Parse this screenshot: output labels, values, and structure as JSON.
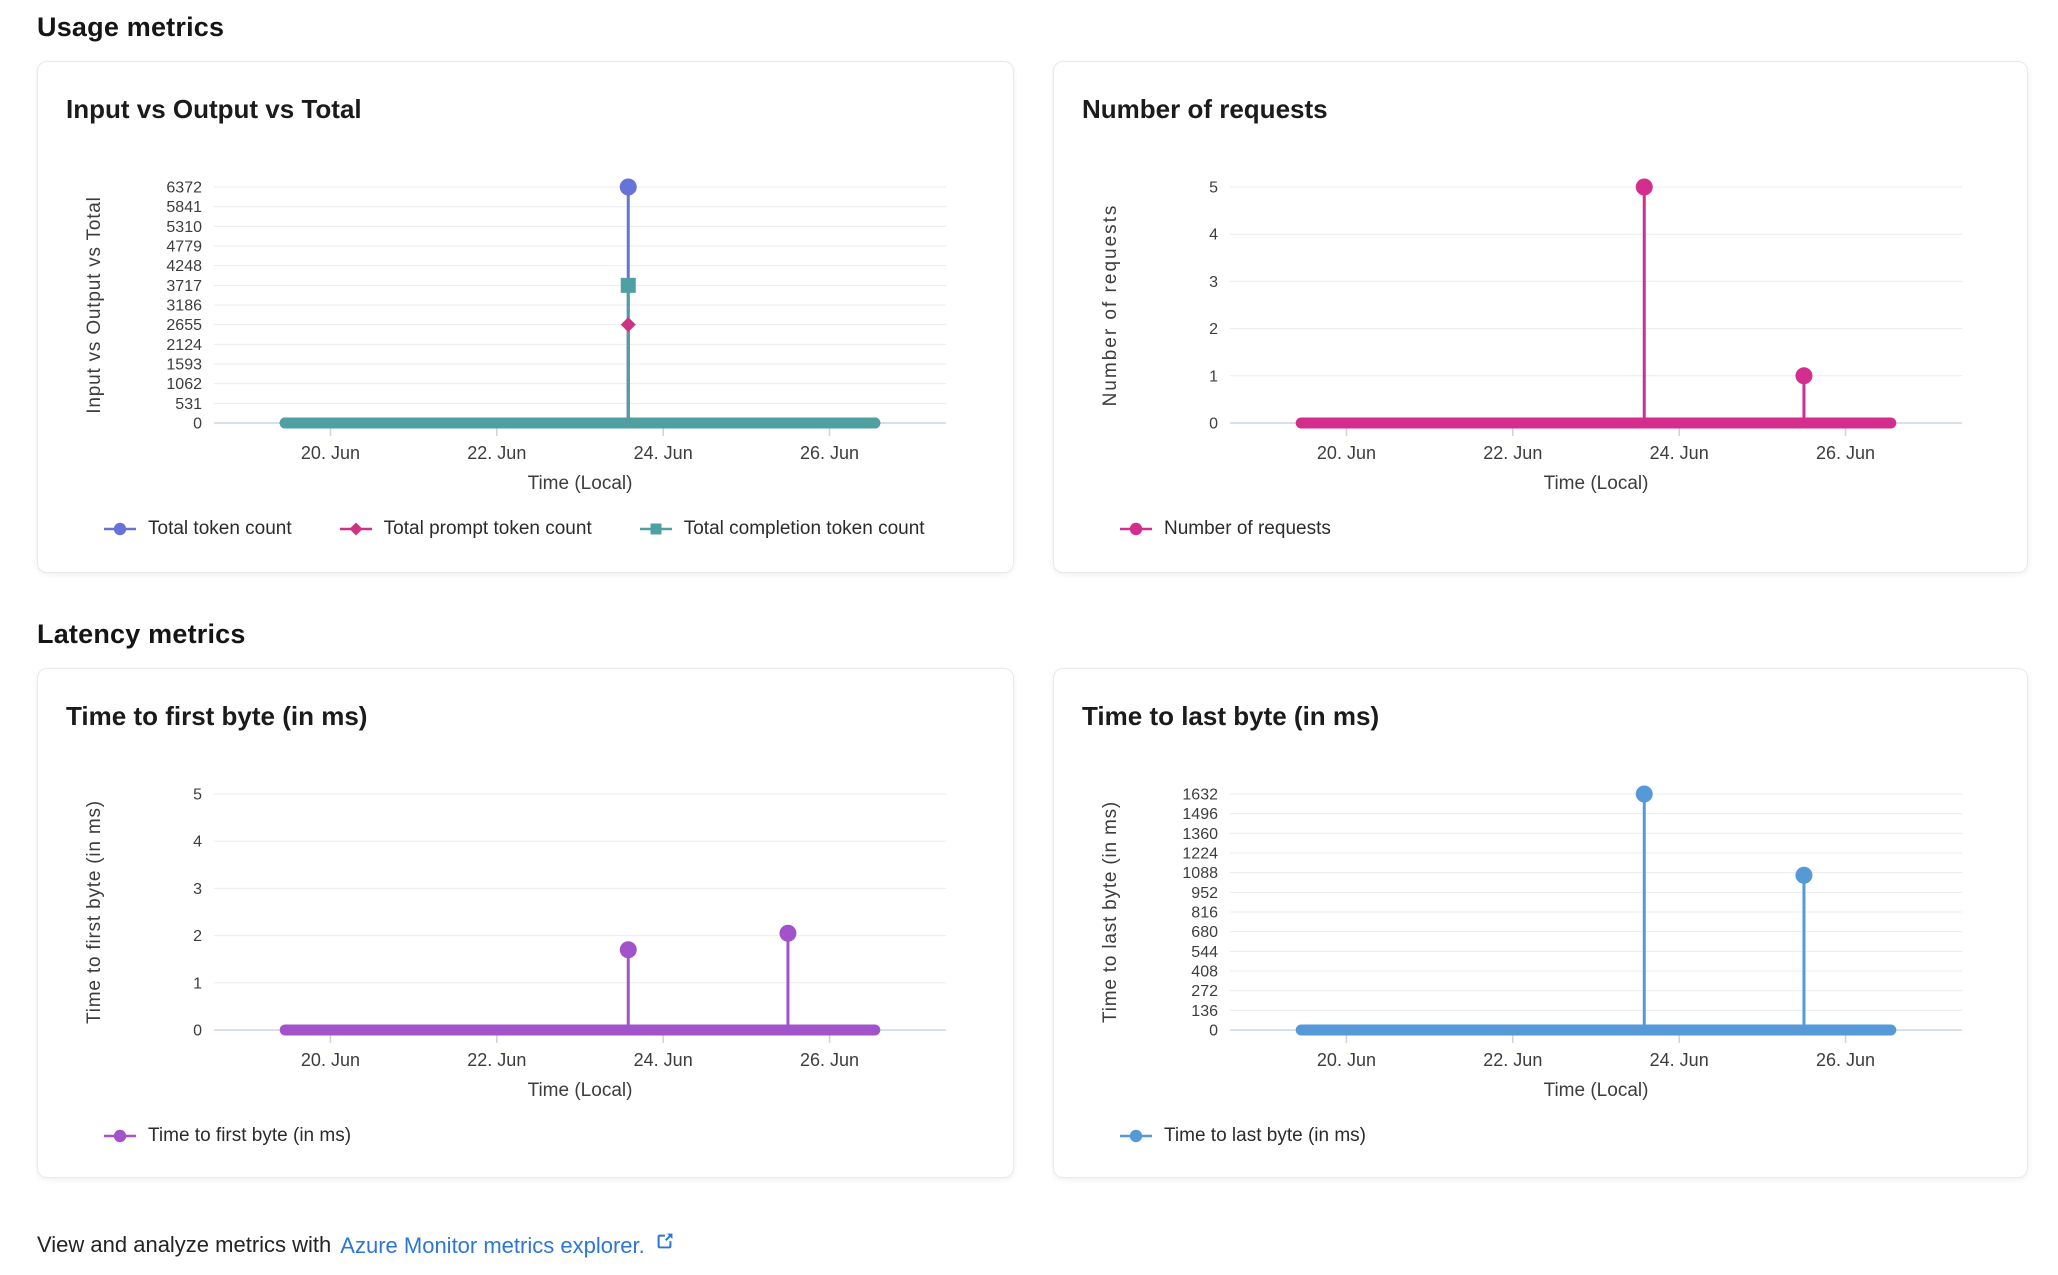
{
  "sections": {
    "usage": {
      "title": "Usage metrics"
    },
    "latency": {
      "title": "Latency metrics"
    }
  },
  "footer": {
    "text_before_link": "View and analyze metrics with ",
    "link_label": "Azure Monitor metrics explorer.",
    "link_color": "#2e76d5",
    "icon": "external-link-icon"
  },
  "chart_style": {
    "grid_color": "#ececec",
    "axis_line_color": "#ccd6e8",
    "tick_text_color": "#3d3d3d",
    "axis_title_color": "#3d3d3d",
    "grid": true,
    "legend_position": "bottom"
  },
  "chart_data": [
    {
      "id": "input-vs-output-vs-total",
      "section": "usage",
      "type": "line",
      "title": "Input vs Output vs Total",
      "xlabel": "Time (Local)",
      "ylabel": "Input vs Output vs Total",
      "x_axis": {
        "label": "Time (Local)",
        "unit": "day of June",
        "domain": [
          18.6,
          27.4
        ],
        "data_span": [
          19.45,
          26.55
        ],
        "ticks": [
          {
            "day": 20,
            "label": "20. Jun"
          },
          {
            "day": 22,
            "label": "22. Jun"
          },
          {
            "day": 24,
            "label": "24. Jun"
          },
          {
            "day": 26,
            "label": "26. Jun"
          }
        ]
      },
      "y_axis": {
        "label": "Input vs Output vs Total",
        "max": 6372,
        "ticks": [
          0,
          531,
          1062,
          1593,
          2124,
          2655,
          3186,
          3717,
          4248,
          4779,
          5310,
          5841,
          6372
        ]
      },
      "series": [
        {
          "name": "Total token count",
          "color": "#6673d8",
          "marker": "circle",
          "baseline_value": 0,
          "spikes": [
            {
              "day": 23.58,
              "value": 6372
            }
          ]
        },
        {
          "name": "Total prompt token count",
          "color": "#d03283",
          "marker": "diamond",
          "baseline_value": 0,
          "spikes": [
            {
              "day": 23.58,
              "value": 2655
            }
          ]
        },
        {
          "name": "Total completion token count",
          "color": "#4fa0a2",
          "marker": "square",
          "baseline_value": 0,
          "spikes": [
            {
              "day": 23.58,
              "value": 3717
            }
          ]
        }
      ]
    },
    {
      "id": "number-of-requests",
      "section": "usage",
      "type": "line",
      "title": "Number of requests",
      "xlabel": "Time (Local)",
      "ylabel": "Number of requests",
      "x_axis": {
        "label": "Time (Local)",
        "unit": "day of June",
        "domain": [
          18.6,
          27.4
        ],
        "data_span": [
          19.45,
          26.55
        ],
        "ticks": [
          {
            "day": 20,
            "label": "20. Jun"
          },
          {
            "day": 22,
            "label": "22. Jun"
          },
          {
            "day": 24,
            "label": "24. Jun"
          },
          {
            "day": 26,
            "label": "26. Jun"
          }
        ]
      },
      "y_axis": {
        "label": "Number of requests",
        "max": 5,
        "ticks": [
          0,
          1,
          2,
          3,
          4,
          5
        ]
      },
      "series": [
        {
          "name": "Number of requests",
          "color": "#d32e8e",
          "marker": "circle",
          "baseline_value": 0,
          "spikes": [
            {
              "day": 23.58,
              "value": 5
            },
            {
              "day": 25.5,
              "value": 1
            }
          ]
        }
      ]
    },
    {
      "id": "time-to-first-byte",
      "section": "latency",
      "type": "line",
      "title": "Time to first byte (in ms)",
      "xlabel": "Time (Local)",
      "ylabel": "Time to first byte (in ms)",
      "x_axis": {
        "label": "Time (Local)",
        "unit": "day of June",
        "domain": [
          18.6,
          27.4
        ],
        "data_span": [
          19.45,
          26.55
        ],
        "ticks": [
          {
            "day": 20,
            "label": "20. Jun"
          },
          {
            "day": 22,
            "label": "22. Jun"
          },
          {
            "day": 24,
            "label": "24. Jun"
          },
          {
            "day": 26,
            "label": "26. Jun"
          }
        ]
      },
      "y_axis": {
        "label": "Time to first byte (in ms)",
        "max": 5,
        "ticks": [
          0,
          1,
          2,
          3,
          4,
          5
        ]
      },
      "series": [
        {
          "name": "Time to first byte (in ms)",
          "color": "#a253c9",
          "marker": "circle",
          "baseline_value": 0,
          "spikes": [
            {
              "day": 23.58,
              "value": 1.7
            },
            {
              "day": 25.5,
              "value": 2.05
            }
          ]
        }
      ]
    },
    {
      "id": "time-to-last-byte",
      "section": "latency",
      "type": "line",
      "title": "Time to last byte (in ms)",
      "xlabel": "Time (Local)",
      "ylabel": "Time to last byte (in ms)",
      "x_axis": {
        "label": "Time (Local)",
        "unit": "day of June",
        "domain": [
          18.6,
          27.4
        ],
        "data_span": [
          19.45,
          26.55
        ],
        "ticks": [
          {
            "day": 20,
            "label": "20. Jun"
          },
          {
            "day": 22,
            "label": "22. Jun"
          },
          {
            "day": 24,
            "label": "24. Jun"
          },
          {
            "day": 26,
            "label": "26. Jun"
          }
        ]
      },
      "y_axis": {
        "label": "Time to last byte (in ms)",
        "max": 1632,
        "ticks": [
          0,
          136,
          272,
          408,
          544,
          680,
          816,
          952,
          1088,
          1224,
          1360,
          1496,
          1632
        ]
      },
      "series": [
        {
          "name": "Time to last byte (in ms)",
          "color": "#5599d8",
          "marker": "circle",
          "baseline_value": 0,
          "spikes": [
            {
              "day": 23.58,
              "value": 1632
            },
            {
              "day": 25.5,
              "value": 1070
            }
          ]
        }
      ]
    }
  ]
}
